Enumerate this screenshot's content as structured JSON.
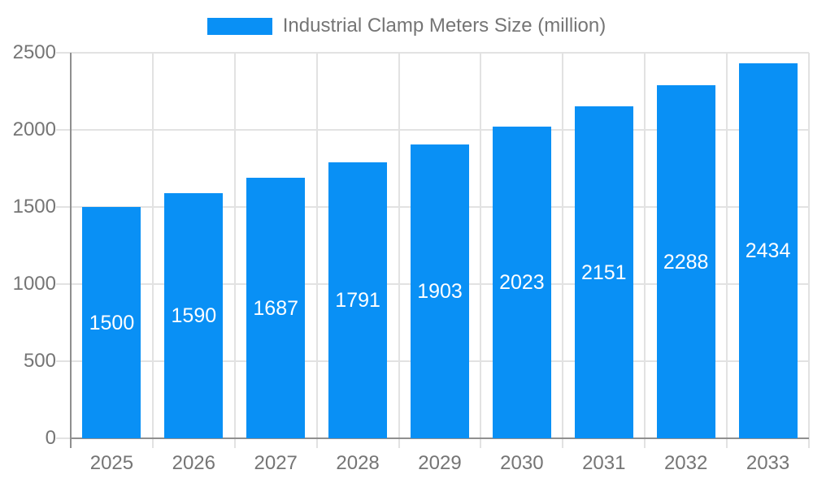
{
  "chart_data": {
    "type": "bar",
    "title": "Industrial Clamp Meters Size (million)",
    "legend": [
      {
        "label": "Industrial Clamp Meters Size (million)"
      }
    ],
    "legend_position": "top",
    "categories": [
      "2025",
      "2026",
      "2027",
      "2028",
      "2029",
      "2030",
      "2031",
      "2032",
      "2033"
    ],
    "series": [
      {
        "name": "Industrial Clamp Meters Size (million)",
        "values": [
          1500,
          1590,
          1687,
          1791,
          1903,
          2023,
          2151,
          2288,
          2434
        ]
      }
    ],
    "xlabel": "",
    "ylabel": "",
    "ylim": [
      0,
      2500
    ],
    "yticks": [
      0,
      500,
      1000,
      1500,
      2000,
      2500
    ],
    "grid": true,
    "data_labels": "inside-center",
    "colors": {
      "bar": "#0990f5",
      "bar_label": "#ffffff",
      "grid": "#e2e2e2",
      "axis": "#8f8f8f",
      "text": "#757575",
      "background": "#ffffff"
    }
  }
}
